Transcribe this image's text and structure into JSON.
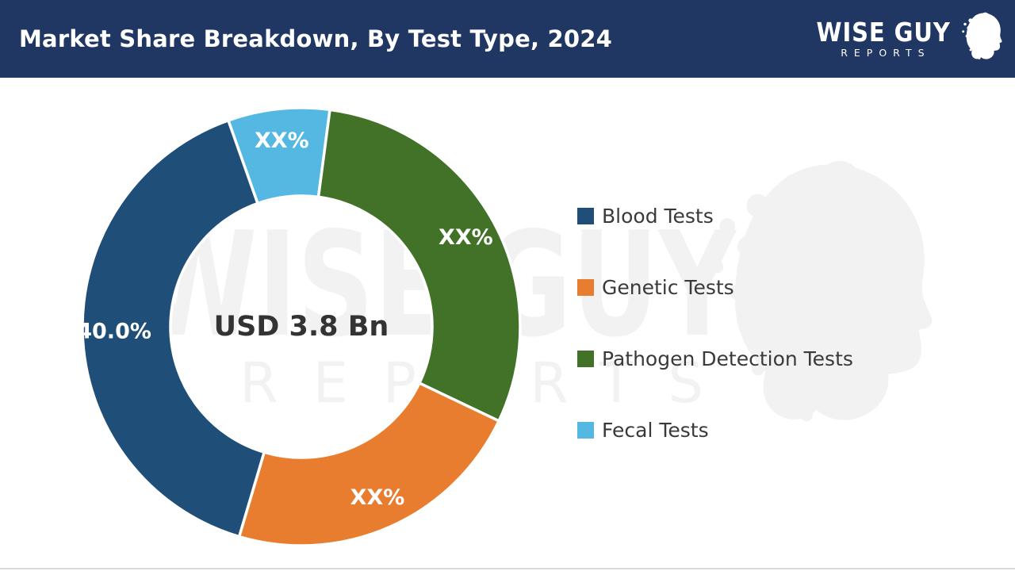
{
  "header": {
    "title": "Market Share Breakdown, By Test Type, 2024",
    "logo": {
      "line1": "WISE GUY",
      "line2": "REPORTS"
    }
  },
  "watermark": {
    "line1": "WISE GUY",
    "line2": "REPORTS"
  },
  "chart_data": {
    "type": "donut",
    "title": "Market Share Breakdown, By Test Type, 2024",
    "center_label": "USD 3.8 Bn",
    "slices": [
      {
        "name": "Blood Tests",
        "value_pct": 40.0,
        "display_label": "40.0%",
        "color": "#1f4e78"
      },
      {
        "name": "Genetic Tests",
        "value_pct": 22.5,
        "display_label": "XX%",
        "color": "#e87d30"
      },
      {
        "name": "Pathogen Detection Tests",
        "value_pct": 30.0,
        "display_label": "XX%",
        "color": "#417228"
      },
      {
        "name": "Fecal Tests",
        "value_pct": 7.5,
        "display_label": "XX%",
        "color": "#54b8e3"
      }
    ],
    "draw_order": [
      "Fecal Tests",
      "Pathogen Detection Tests",
      "Genetic Tests",
      "Blood Tests"
    ],
    "start_angle_deg": -19.5,
    "clockwise": true,
    "legend_position": "right",
    "legend": [
      {
        "label": "Blood Tests",
        "color": "#1f4e78"
      },
      {
        "label": "Genetic Tests",
        "color": "#e87d30"
      },
      {
        "label": "Pathogen Detection Tests",
        "color": "#417228"
      },
      {
        "label": "Fecal Tests",
        "color": "#54b8e3"
      }
    ]
  },
  "colors": {
    "header_bg": "#203663",
    "title_text": "#ffffff",
    "center_text": "#333333",
    "legend_text": "#3a3a3a",
    "watermark": "#f2f2f2",
    "divider": "#d9d9d9"
  }
}
